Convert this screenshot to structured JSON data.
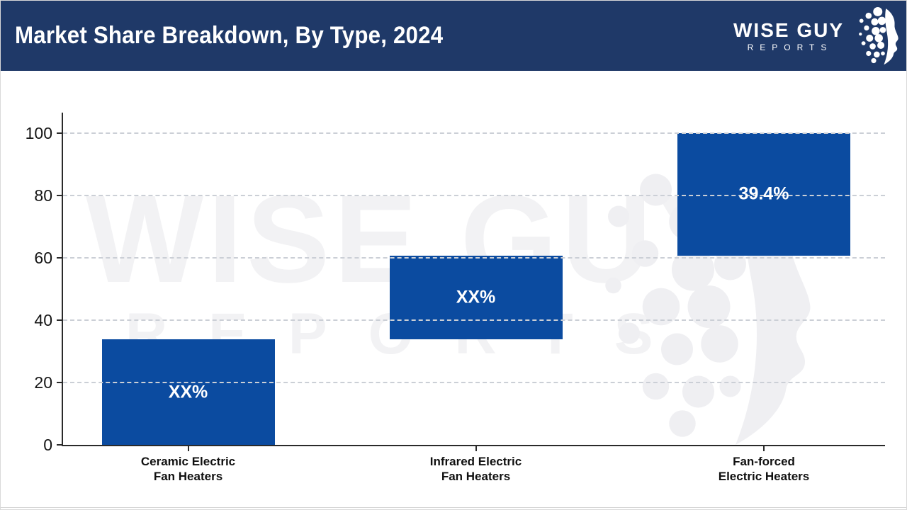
{
  "header": {
    "title": "Market Share Breakdown, By Type, 2024",
    "bg_color": "#1F3968"
  },
  "logo": {
    "text_primary": "WISE GUY",
    "text_secondary": "REPORTS"
  },
  "watermark": {
    "text_primary": "WISE GUY",
    "text_secondary": "REPORTS",
    "color": "#f2f2f4"
  },
  "chart_data": {
    "type": "bar",
    "variant": "waterfall (floating stacked segments)",
    "categories": [
      {
        "lines": [
          "Ceramic Electric",
          "Fan Heaters"
        ]
      },
      {
        "lines": [
          "Infrared Electric",
          "Fan Heaters"
        ]
      },
      {
        "lines": [
          "Fan-forced",
          "Electric Heaters"
        ]
      }
    ],
    "segments": [
      {
        "start": 0,
        "end": 33.8,
        "value_label": "XX%"
      },
      {
        "start": 33.8,
        "end": 60.6,
        "value_label": "XX%"
      },
      {
        "start": 60.6,
        "end": 100,
        "value_label": "39.4%"
      }
    ],
    "yticks": [
      0,
      20,
      40,
      60,
      80,
      100
    ],
    "ylim": [
      0,
      100
    ],
    "grid": "horizontal dashed, drawn above bars",
    "legend": "none",
    "bar_color": "#0B4BA0",
    "value_label_color": "#ffffff",
    "axis_color": "#2a2a2a"
  }
}
